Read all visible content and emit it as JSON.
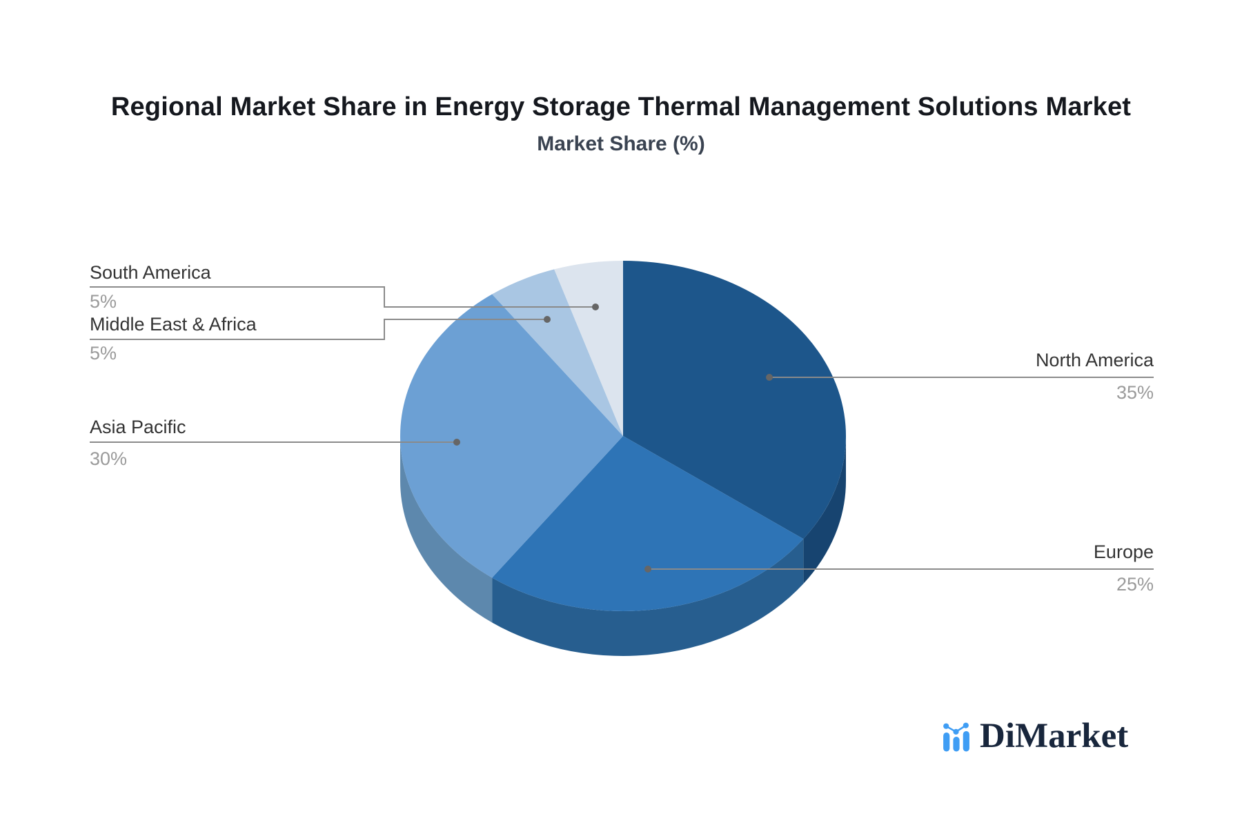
{
  "header": {
    "title": "Regional Market Share in Energy Storage Thermal Management Solutions Market",
    "subtitle": "Market Share (%)"
  },
  "chart_data": {
    "type": "pie",
    "title": "Regional Market Share in Energy Storage Thermal Management Solutions Market",
    "subtitle": "Market Share (%)",
    "unit": "%",
    "effect": "3d-depth",
    "start_angle": "12-oclock, clockwise",
    "legend_position": "callout-labels",
    "segments": [
      {
        "label": "North America",
        "value": 35,
        "display": "35%",
        "color": "#1d568b",
        "side_color": "#174470"
      },
      {
        "label": "Europe",
        "value": 25,
        "display": "25%",
        "color": "#2e74b6",
        "side_color": "#275e8f"
      },
      {
        "label": "Asia Pacific",
        "value": 30,
        "display": "30%",
        "color": "#6ca0d4",
        "side_color": "#5d88ad"
      },
      {
        "label": "Middle East & Africa",
        "value": 5,
        "display": "5%",
        "color": "#a9c6e3",
        "side_color": "#8fabc6"
      },
      {
        "label": "South America",
        "value": 5,
        "display": "5%",
        "color": "#dce4ee",
        "side_color": "#bcc8d6"
      }
    ],
    "label_color": "#333333",
    "value_color": "#9a9a9a",
    "leader_line_color": "#8a8a8a",
    "leader_dot_color": "#666666"
  },
  "branding": {
    "logo_text": "DiMarket",
    "logo_color": "#18263c",
    "logo_icon": "bar-line-chart-icon",
    "icon_color": "#3f9df4"
  }
}
